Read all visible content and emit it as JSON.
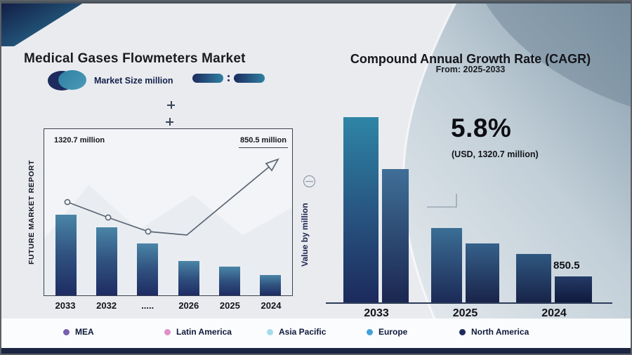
{
  "left_chart": {
    "title": "Medical Gases Flowmeters Market",
    "series_label": "Market Size million",
    "side_label": "FUTURE MARKET REPORT",
    "annotation_left": "1320.7 million",
    "annotation_right": "850.5 million"
  },
  "right_chart": {
    "title": "Compound Annual Growth Rate (CAGR)",
    "subtitle": "From: 2025-2033",
    "cagr_value": "5.8%",
    "cagr_note": "(USD, 1320.7 million)",
    "bar_label": "850.5",
    "y_axis_label": "Value by million"
  },
  "region_legend": [
    {
      "label": "MEA",
      "color": "#7a5fb0"
    },
    {
      "label": "Latin America",
      "color": "#e08fc9"
    },
    {
      "label": "Asia Pacific",
      "color": "#a5dbec"
    },
    {
      "label": "Europe",
      "color": "#44a1da"
    },
    {
      "label": "North America",
      "color": "#1d2a5c"
    }
  ],
  "chart_data": [
    {
      "type": "bar",
      "title": "Medical Gases Flowmeters Market",
      "ylabel": "Market Size million",
      "categories": [
        "2033",
        "2032",
        ".....",
        "2026",
        "2025",
        "2024"
      ],
      "labeled_values": {
        "2033": 1320.7,
        "2024": 850.5
      },
      "bar_heights_rel": [
        1.0,
        0.84,
        0.64,
        0.43,
        0.36,
        0.25
      ],
      "annotations": [
        "1320.7 million",
        "850.5 million"
      ],
      "overlay": "trend line with three circle markers descending left-to-right, then arrow rising to upper right"
    },
    {
      "type": "bar",
      "title": "Compound Annual Growth Rate (CAGR)",
      "subtitle": "From: 2025-2033",
      "ylabel": "Value by million",
      "categories": [
        "2033",
        "2025",
        "2024"
      ],
      "cagr_percent": 5.8,
      "labeled_values": {
        "2033": 1320.7,
        "2024": 850.5
      },
      "bar_heights_rel": [
        [
          1.0,
          0.72
        ],
        [
          0.4,
          0.32
        ],
        [
          0.26,
          0.14
        ]
      ],
      "annotations": [
        "5.8%",
        "(USD, 1320.7 million)",
        "850.5"
      ]
    }
  ]
}
